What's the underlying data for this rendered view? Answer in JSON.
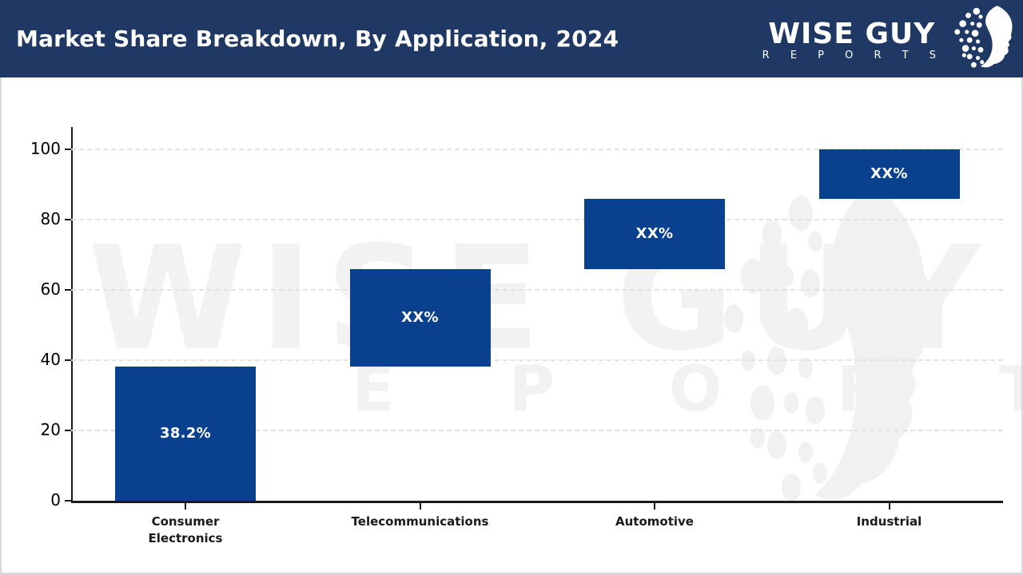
{
  "header": {
    "title": "Market Share Breakdown, By Application, 2024",
    "bg_color": "#1f3864",
    "logo": {
      "line1": "WISE GUY",
      "line2": "R E P O R T S"
    }
  },
  "watermark": {
    "line1": "WISE GUY",
    "line2": "R E P O R T S"
  },
  "chart_data": {
    "type": "bar",
    "subtype": "waterfall",
    "title": "Market Share Breakdown, By Application, 2024",
    "xlabel": "",
    "ylabel": "",
    "categories": [
      "Consumer Electronics",
      "Telecommunications",
      "Automotive",
      "Industrial"
    ],
    "y_ticks": [
      0,
      20,
      40,
      60,
      80,
      100
    ],
    "ylim": [
      0,
      106
    ],
    "grid": "horizontal-dashed",
    "bar_color": "#09418f",
    "bar_label_color": "#ffffff",
    "segments": [
      {
        "category": "Consumer Electronics",
        "label_lines": [
          "Consumer",
          "Electronics"
        ],
        "start": 0,
        "end": 38.2,
        "value_label": "38.2%"
      },
      {
        "category": "Telecommunications",
        "label_lines": [
          "Telecommunications"
        ],
        "start": 38.2,
        "end": 66,
        "value_label": "XX%"
      },
      {
        "category": "Automotive",
        "label_lines": [
          "Automotive"
        ],
        "start": 66,
        "end": 86,
        "value_label": "XX%"
      },
      {
        "category": "Industrial",
        "label_lines": [
          "Industrial"
        ],
        "start": 86,
        "end": 100,
        "value_label": "XX%"
      }
    ]
  }
}
